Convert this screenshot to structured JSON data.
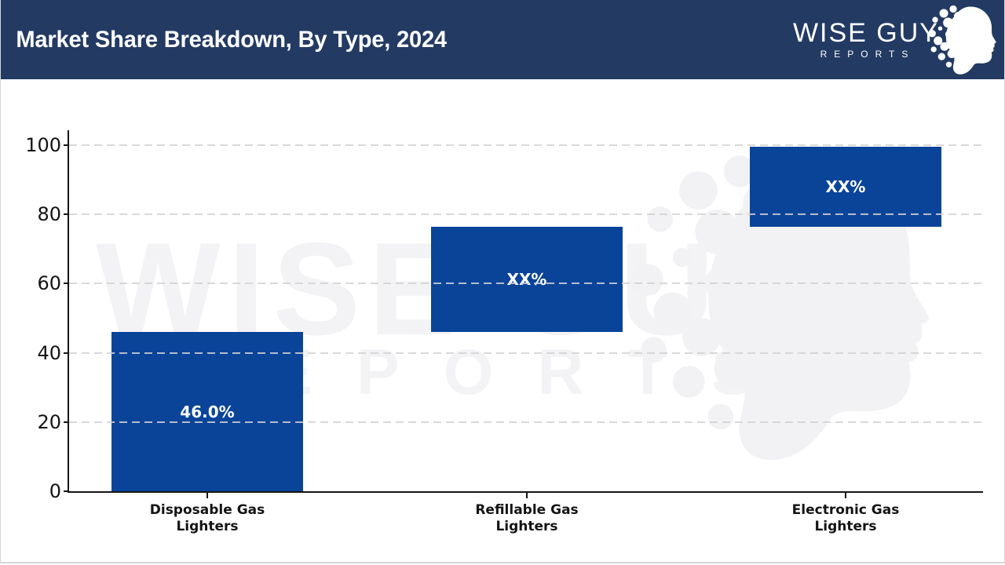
{
  "header": {
    "title": "Market Share Breakdown, By Type, 2024",
    "logo": {
      "primary": "WISE GUY",
      "secondary": "REPORTS"
    }
  },
  "watermark": {
    "primary": "WISE GUY",
    "secondary": "REPORTS"
  },
  "chart_data": {
    "type": "bar",
    "subtype": "floating-waterfall",
    "title": "Market Share Breakdown, By Type, 2024",
    "categories": [
      "Disposable Gas\nLighters",
      "Refillable Gas\nLighters",
      "Electronic Gas\nLighters"
    ],
    "segments": [
      {
        "category": "Disposable Gas Lighters",
        "start": 0,
        "end": 46,
        "label": "46.0%"
      },
      {
        "category": "Refillable Gas Lighters",
        "start": 46,
        "end": 76.5,
        "label": "XX%"
      },
      {
        "category": "Electronic Gas Lighters",
        "start": 76.5,
        "end": 99.5,
        "label": "XX%"
      }
    ],
    "ylim": [
      0,
      104
    ],
    "yticks": [
      0,
      20,
      40,
      60,
      80,
      100
    ],
    "grid": "dashed-horizontal",
    "legend": "none",
    "bar_color": "#0a4499",
    "bar_label_color": "#ffffff"
  },
  "colors": {
    "header_bg": "#233a63",
    "header_text": "#ffffff",
    "bar": "#0a4499",
    "grid": "#d2d2d2",
    "axis": "#141414",
    "watermark": "#f3f3f6"
  }
}
